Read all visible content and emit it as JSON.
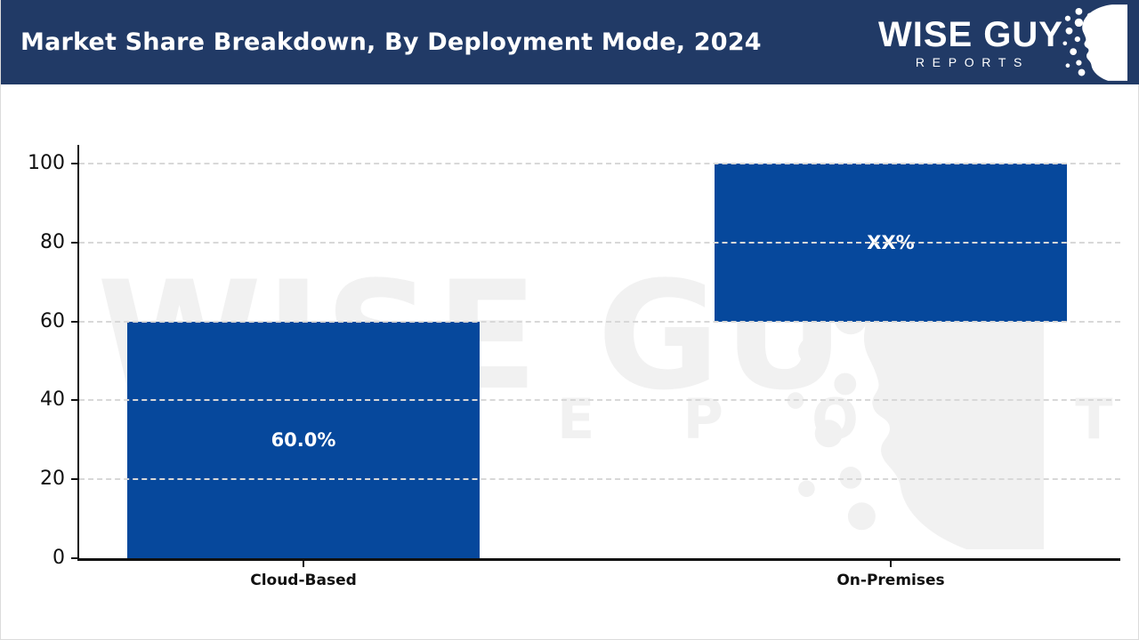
{
  "header": {
    "title": "Market Share Breakdown, By Deployment Mode, 2024",
    "bg_color": "#213a66",
    "logo": {
      "line1": "WISE GUY",
      "line2": "REPORTS"
    }
  },
  "watermark": {
    "line1": "WISE GUY",
    "line2": "REPORTS",
    "color": "#f1f1f1"
  },
  "chart_data": {
    "type": "bar",
    "variant": "stacked-waterfall-segments",
    "title": "Market Share Breakdown, By Deployment Mode, 2024",
    "categories": [
      "Cloud-Based",
      "On-Premises"
    ],
    "bars": [
      {
        "category": "Cloud-Based",
        "start": 0,
        "end": 60,
        "value": "60.0",
        "label": "60.0%"
      },
      {
        "category": "On-Premises",
        "start": 60,
        "end": 100,
        "value": "XX",
        "label": "XX%"
      }
    ],
    "yticks": [
      0,
      20,
      40,
      60,
      80,
      100
    ],
    "ylim": [
      0,
      104.7
    ],
    "xlabel": "",
    "ylabel": "",
    "legend": "none",
    "grid": "horizontal-dashed",
    "bar_color": "#06489c",
    "grid_color": "#d8d8d8",
    "axis_color": "#111111"
  }
}
